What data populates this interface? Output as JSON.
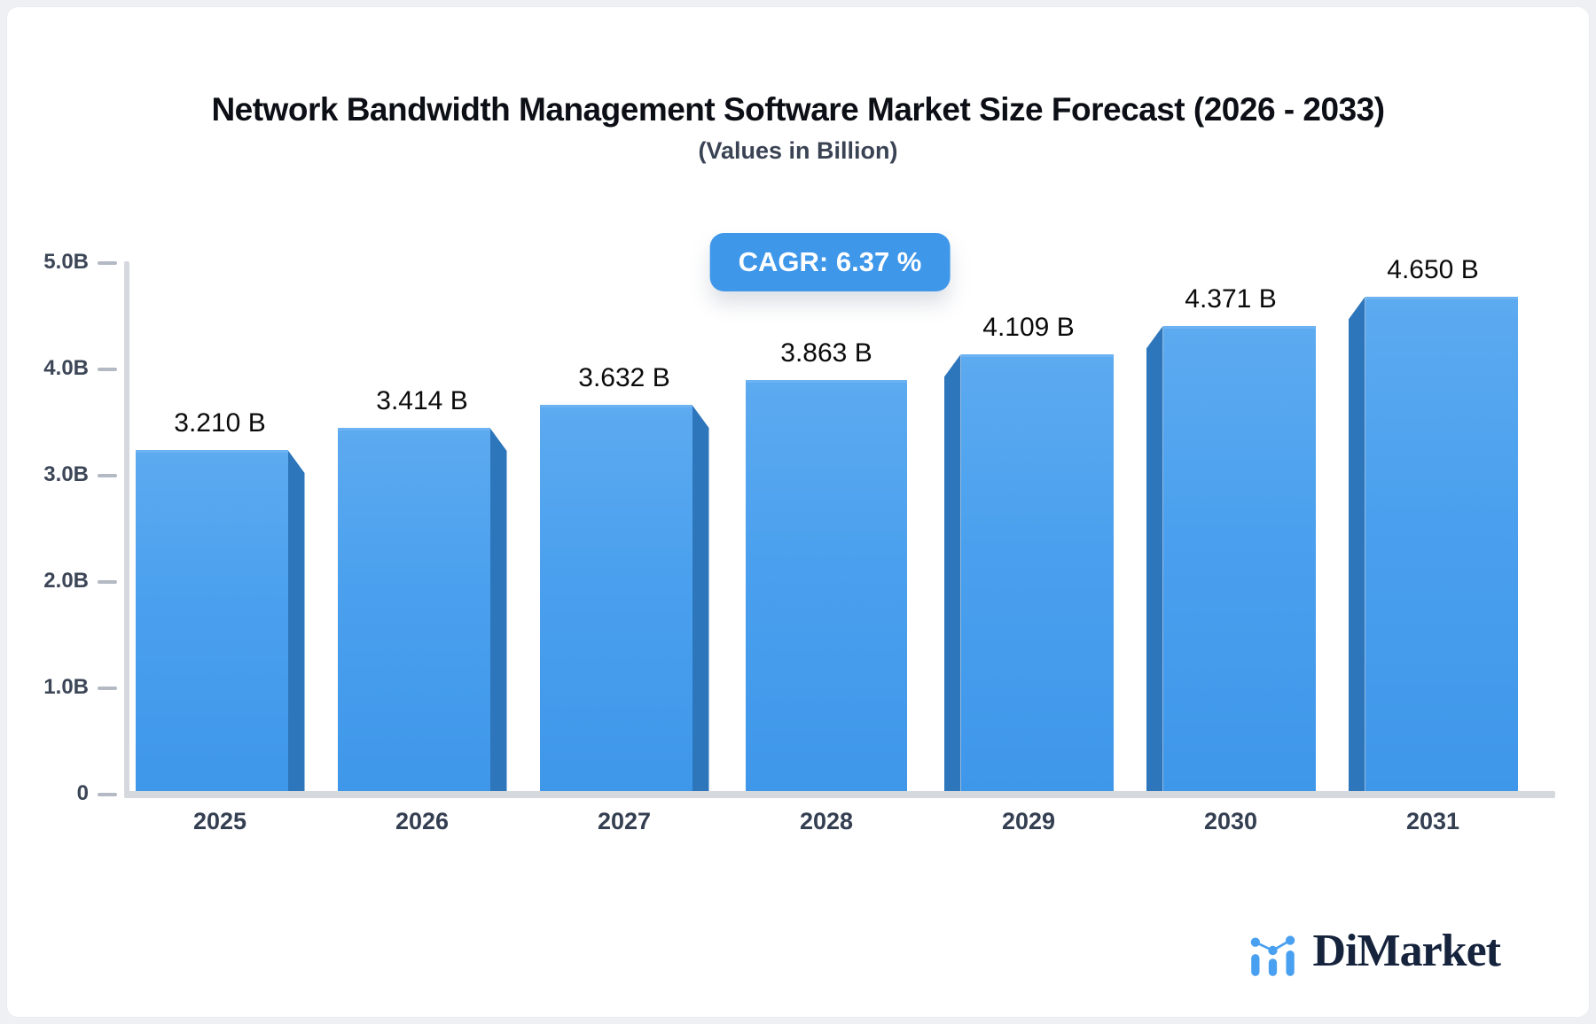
{
  "title": "Network Bandwidth Management Software Market Size Forecast (2026 - 2033)",
  "subtitle": "(Values in Billion)",
  "cagr_badge": "CAGR: 6.37 %",
  "brand": {
    "name": "DiMarket",
    "icon": "bar-chart-trend-icon",
    "icon_color": "#4aa0f0",
    "text_color": "#16233c"
  },
  "colors": {
    "bar_face_top": "#5caaf0",
    "bar_face_bottom": "#3f97ea",
    "bar_side": "#2e76bb",
    "badge_bg": "#3f97ea",
    "axis_line": "#d5d9de",
    "tick": "#b4bac3",
    "axis_text": "#3c4657",
    "title_text": "#0c0f15"
  },
  "chart_data": {
    "type": "bar",
    "title": "Network Bandwidth Management Software Market Size Forecast (2026 - 2033)",
    "subtitle": "(Values in Billion)",
    "categories": [
      "2025",
      "2026",
      "2027",
      "2028",
      "2029",
      "2030",
      "2031"
    ],
    "values": [
      3.21,
      3.414,
      3.632,
      3.863,
      4.109,
      4.371,
      4.65
    ],
    "value_labels": [
      "3.210 B",
      "3.414 B",
      "3.632 B",
      "3.863 B",
      "4.109 B",
      "4.371 B",
      "4.650 B"
    ],
    "xlabel": "",
    "ylabel": "",
    "ylim": [
      0,
      5
    ],
    "ytick_labels": [
      "0",
      "1.0B",
      "2.0B",
      "3.0B",
      "4.0B",
      "5.0B"
    ],
    "grid": false,
    "legend": false,
    "bar_style": "3d-perspective-blue",
    "annotation": "CAGR: 6.37 %"
  }
}
